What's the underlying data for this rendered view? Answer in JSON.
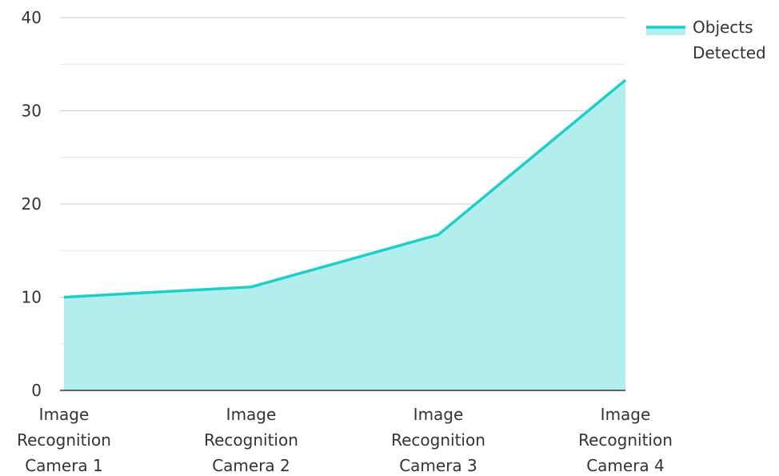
{
  "chart_data": {
    "type": "area",
    "categories": [
      [
        "Image",
        "Recognition",
        "Camera 1"
      ],
      [
        "Image",
        "Recognition",
        "Camera 2"
      ],
      [
        "Image",
        "Recognition",
        "Camera 3"
      ],
      [
        "Image",
        "Recognition",
        "Camera 4"
      ]
    ],
    "series": [
      {
        "name": "Objects Detected",
        "values": [
          10,
          11.1,
          16.7,
          33.3
        ]
      }
    ],
    "legend": {
      "lines": [
        "Objects",
        "Detected"
      ],
      "placement": "top-right"
    },
    "ylim": [
      0,
      40
    ],
    "yticks": [
      0,
      10,
      20,
      30,
      40
    ],
    "grid": true,
    "colors": {
      "line": "#1ccfc9",
      "fill": "#b2eeed",
      "grid": "#d0d0d0",
      "axis": "#333333",
      "text": "#333333"
    }
  }
}
